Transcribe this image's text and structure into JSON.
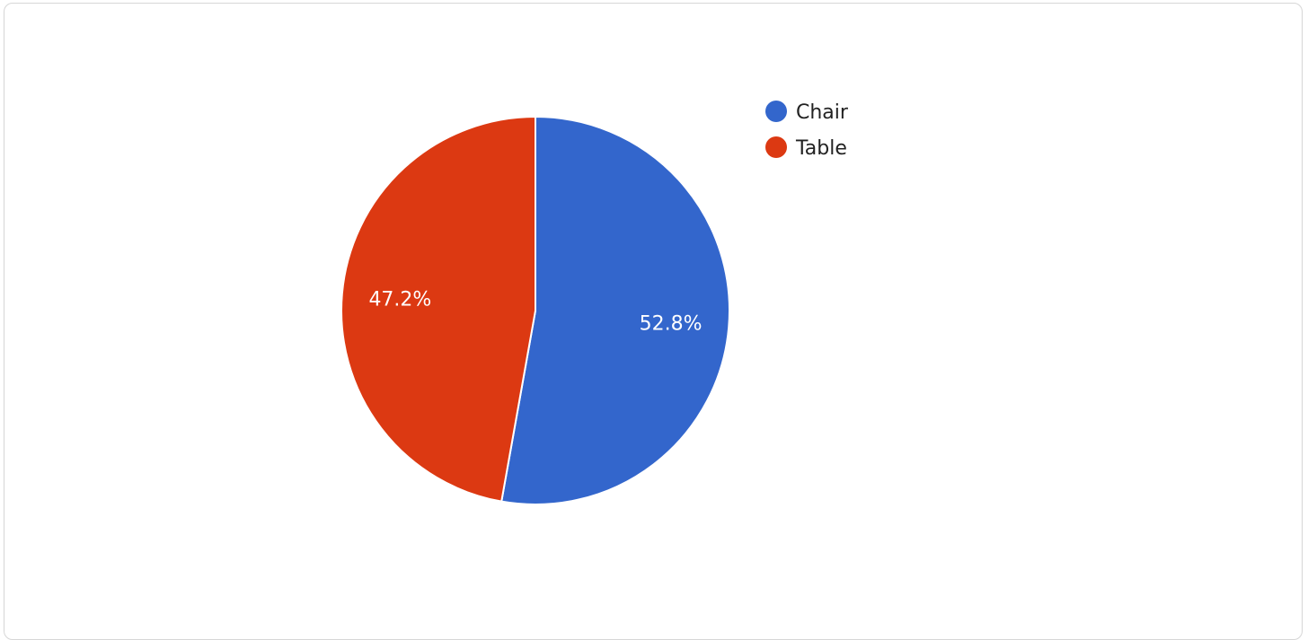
{
  "chart_data": {
    "type": "pie",
    "title": "",
    "categories": [
      "Chair",
      "Table"
    ],
    "values": [
      52.8,
      47.2
    ],
    "labels": [
      "52.8%",
      "47.2%"
    ],
    "colors": [
      "#3366cc",
      "#dc3912"
    ],
    "start_angle_deg": 0,
    "direction": "clockwise",
    "legend": {
      "position": "right",
      "items": [
        {
          "label": "Chair",
          "color": "#3366cc"
        },
        {
          "label": "Table",
          "color": "#dc3912"
        }
      ]
    }
  }
}
